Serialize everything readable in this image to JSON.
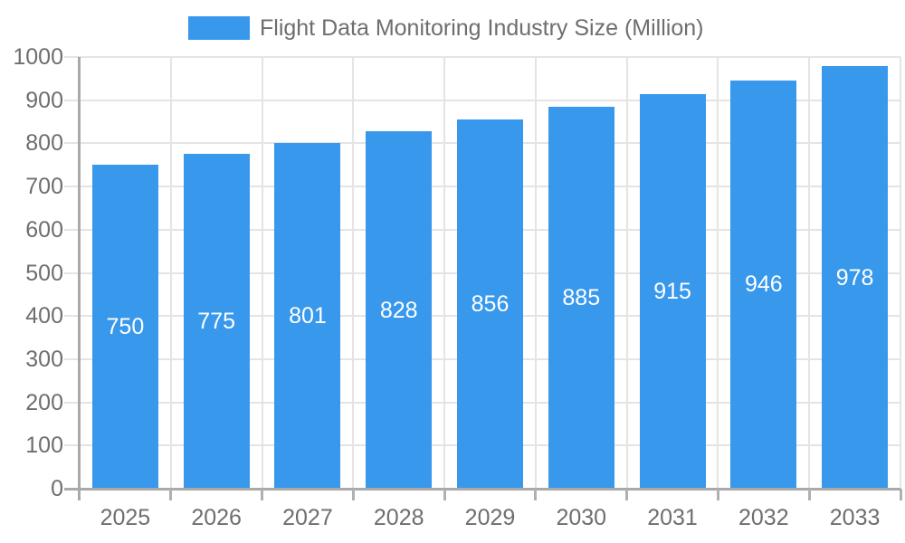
{
  "legend": {
    "label": "Flight Data Monitoring Industry Size (Million)"
  },
  "chart_data": {
    "type": "bar",
    "title": "Flight Data Monitoring Industry Size (Million)",
    "series_name": "Flight Data Monitoring Industry Size (Million)",
    "categories": [
      "2025",
      "2026",
      "2027",
      "2028",
      "2029",
      "2030",
      "2031",
      "2032",
      "2033"
    ],
    "values": [
      750,
      775,
      801,
      828,
      856,
      885,
      915,
      946,
      978
    ],
    "xlabel": "",
    "ylabel": "",
    "ylim": [
      0,
      1000
    ],
    "ytick_step": 100,
    "yticks": [
      0,
      100,
      200,
      300,
      400,
      500,
      600,
      700,
      800,
      900,
      1000
    ],
    "grid": true,
    "legend_position": "top",
    "bar_label_position": "inside-center",
    "colors": {
      "bar": "#3898ec",
      "grid": "#e4e4e4",
      "axis": "#a9a9a9",
      "tick": "#b0b0b0",
      "text": "#6e6e6e",
      "bar_label": "#ffffff"
    }
  }
}
